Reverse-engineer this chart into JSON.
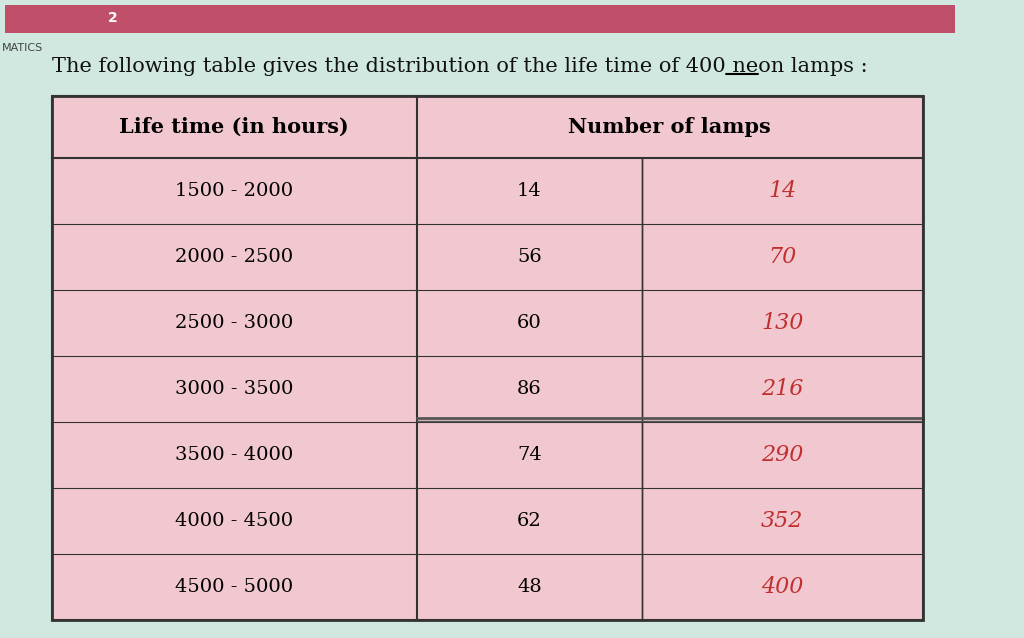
{
  "title": "The following table gives the distribution of the life time of 400 neon lamps :",
  "title_underline_word": "400",
  "col1_header": "Life time (in hours)",
  "col2_header": "Number of lamps",
  "rows": [
    {
      "lifetime": "1500 - 2000",
      "lamps": "14",
      "cumulative": "14"
    },
    {
      "lifetime": "2000 - 2500",
      "lamps": "56",
      "cumulative": "70"
    },
    {
      "lifetime": "2500 - 3000",
      "lamps": "60",
      "cumulative": "130"
    },
    {
      "lifetime": "3000 - 3500",
      "lamps": "86",
      "cumulative": "216"
    },
    {
      "lifetime": "3500 - 4000",
      "lamps": "74",
      "cumulative": "290"
    },
    {
      "lifetime": "4000 - 4500",
      "lamps": "62",
      "cumulative": "352"
    },
    {
      "lifetime": "4500 - 5000",
      "lamps": "48",
      "cumulative": "400"
    }
  ],
  "table_bg": "#f2c8d0",
  "header_bg": "#f2c8d0",
  "border_color": "#333333",
  "page_bg": "#d0e8e0",
  "title_color": "#111111",
  "header_font_size": 15,
  "data_font_size": 14,
  "title_font_size": 15,
  "divider_row": 3,
  "top_bar_color": "#c0506a",
  "label_color_left": "#222222",
  "label_color_cumulative": "#c03030"
}
